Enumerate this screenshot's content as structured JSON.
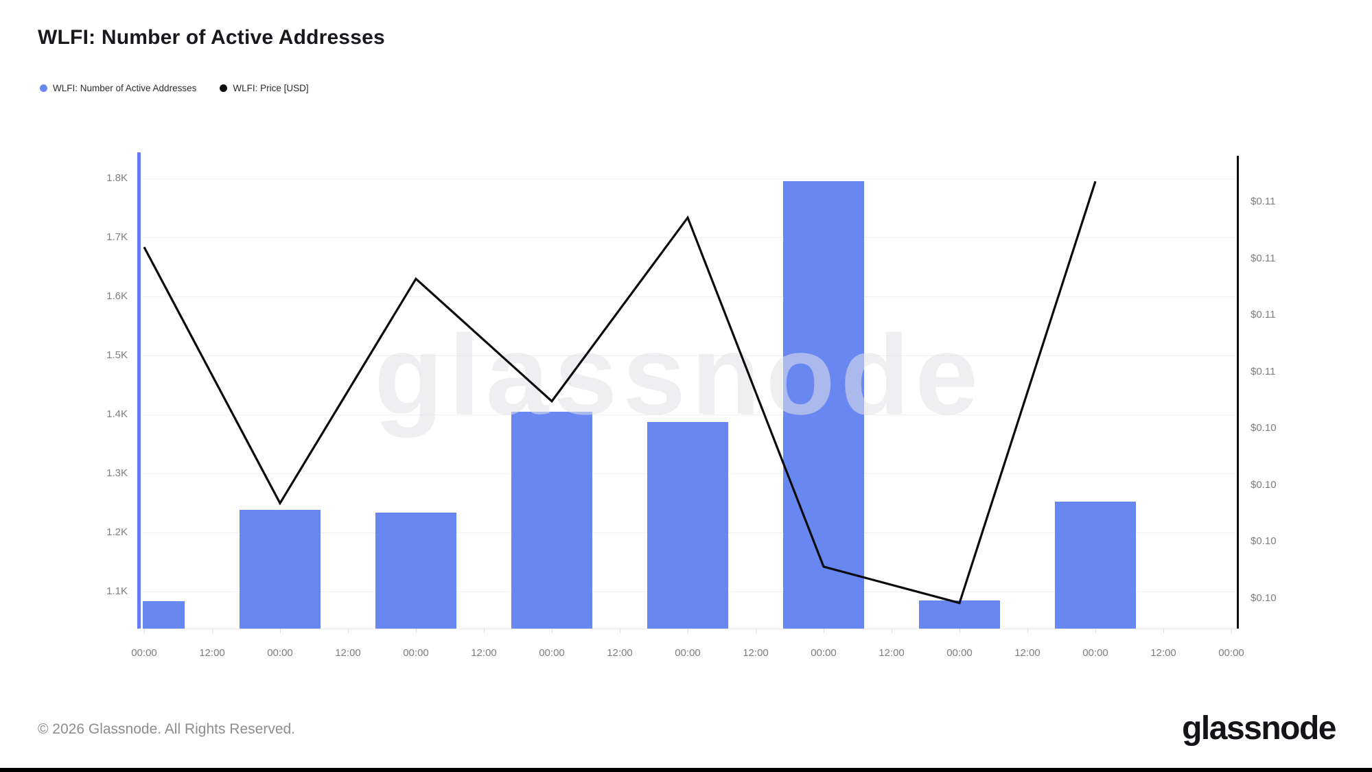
{
  "header": {
    "title": "WLFI: Number of Active Addresses"
  },
  "legend": [
    {
      "label": "WLFI: Number of Active Addresses",
      "color": "#6987F0"
    },
    {
      "label": "WLFI: Price [USD]",
      "color": "#0b0b0e"
    }
  ],
  "watermark": "glassnode",
  "footer": {
    "copyright": "© 2026 Glassnode. All Rights Reserved.",
    "brand": "glassnode"
  },
  "chart_data": {
    "type": "bar",
    "title": "WLFI: Number of Active Addresses",
    "categories": [
      "00:00",
      "12:00",
      "00:00",
      "12:00",
      "00:00",
      "12:00",
      "00:00",
      "12:00",
      "00:00",
      "12:00",
      "00:00",
      "12:00",
      "00:00",
      "12:00",
      "00:00",
      "12:00",
      "00:00"
    ],
    "bars_every_n_categories": 2,
    "series": [
      {
        "name": "WLFI: Number of Active Addresses",
        "type": "bar",
        "axis": "left",
        "color": "#6987F0",
        "values": [
          1083,
          1238,
          1233,
          1405,
          1387,
          1795,
          1085,
          1252
        ]
      },
      {
        "name": "WLFI: Price [USD]",
        "type": "line",
        "axis": "right",
        "color": "#0b0b0e",
        "values": [
          0.1105,
          0.0992,
          0.1091,
          0.1037,
          0.1118,
          0.0964,
          0.0948,
          0.1134
        ]
      }
    ],
    "left_axis": {
      "tick_labels": [
        "1.8K",
        "1.7K",
        "1.6K",
        "1.5K",
        "1.4K",
        "1.3K",
        "1.2K",
        "1.1K"
      ],
      "tick_values": [
        1800,
        1700,
        1600,
        1500,
        1400,
        1300,
        1200,
        1100
      ],
      "range": [
        1037,
        1844
      ]
    },
    "right_axis": {
      "tick_labels": [
        "$0.11",
        "$0.11",
        "$0.11",
        "$0.11",
        "$0.10",
        "$0.10",
        "$0.10",
        "$0.10"
      ],
      "tick_values": [
        0.1125,
        0.11,
        0.1075,
        0.105,
        0.1025,
        0.1,
        0.0975,
        0.095
      ],
      "range": [
        0.09367,
        0.11468
      ],
      "currency": "USD"
    },
    "grid": true,
    "legend_position": "top-left"
  }
}
